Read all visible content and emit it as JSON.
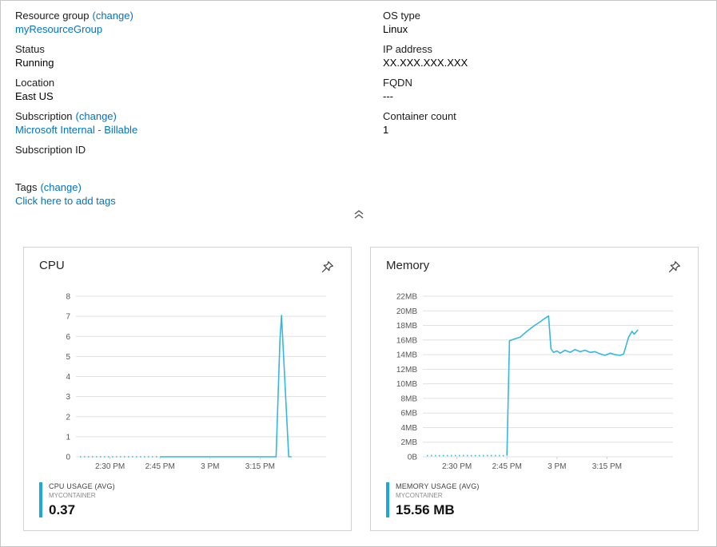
{
  "info": {
    "left": [
      {
        "label": "Resource group",
        "change": "(change)",
        "value": "myResourceGroup"
      },
      {
        "label": "Status",
        "value": "Running"
      },
      {
        "label": "Location",
        "value": "East US"
      },
      {
        "label": "Subscription",
        "change": "(change)",
        "value": "Microsoft Internal - Billable"
      },
      {
        "label": "Subscription ID",
        "value": ""
      },
      {
        "label": "Tags",
        "change": "(change)",
        "value": "Click here to add tags"
      }
    ],
    "right": [
      {
        "label": "OS type",
        "value": "Linux"
      },
      {
        "label": "IP address",
        "value": "XX.XXX.XXX.XXX"
      },
      {
        "label": "FQDN",
        "value": "---"
      },
      {
        "label": "Container count",
        "value": "1"
      }
    ]
  },
  "colors": {
    "link": "#0072c6",
    "chart_line": "#35b7df",
    "legend_bar": "#1ea7d6",
    "gridline": "#e0e0e0"
  },
  "chart_data": [
    {
      "type": "line",
      "title": "CPU",
      "line_color": "#35b7df",
      "xlim": [
        14.33,
        15.58
      ],
      "ylim": [
        0,
        8
      ],
      "x_ticks": [
        {
          "label": "2:30 PM",
          "value": 14.5
        },
        {
          "label": "2:45 PM",
          "value": 14.75
        },
        {
          "label": "3 PM",
          "value": 15.0
        },
        {
          "label": "3:15 PM",
          "value": 15.25
        }
      ],
      "y_ticks": [
        {
          "label": "0",
          "value": 0
        },
        {
          "label": "1",
          "value": 1
        },
        {
          "label": "2",
          "value": 2
        },
        {
          "label": "3",
          "value": 3
        },
        {
          "label": "4",
          "value": 4
        },
        {
          "label": "5",
          "value": 5
        },
        {
          "label": "6",
          "value": 6
        },
        {
          "label": "7",
          "value": 7
        },
        {
          "label": "8",
          "value": 8
        }
      ],
      "series": [
        {
          "name": "MYCONTAINER",
          "dotted_points": [
            [
              14.35,
              0
            ],
            [
              14.75,
              0
            ]
          ],
          "points": [
            [
              14.75,
              0
            ],
            [
              15.33,
              0
            ],
            [
              15.349,
              5.8
            ],
            [
              15.357,
              7.05
            ],
            [
              15.393,
              0
            ],
            [
              15.407,
              0
            ]
          ]
        }
      ],
      "legend": {
        "metric": "CPU USAGE (AVG)",
        "value": "0.37"
      }
    },
    {
      "type": "line",
      "title": "Memory",
      "line_color": "#35b7df",
      "xlim": [
        14.33,
        15.58
      ],
      "ylim": [
        0,
        22
      ],
      "x_ticks": [
        {
          "label": "2:30 PM",
          "value": 14.5
        },
        {
          "label": "2:45 PM",
          "value": 14.75
        },
        {
          "label": "3 PM",
          "value": 15.0
        },
        {
          "label": "3:15 PM",
          "value": 15.25
        }
      ],
      "y_ticks": [
        {
          "label": "0B",
          "value": 0
        },
        {
          "label": "2MB",
          "value": 2
        },
        {
          "label": "4MB",
          "value": 4
        },
        {
          "label": "6MB",
          "value": 6
        },
        {
          "label": "8MB",
          "value": 8
        },
        {
          "label": "10MB",
          "value": 10
        },
        {
          "label": "12MB",
          "value": 12
        },
        {
          "label": "14MB",
          "value": 14
        },
        {
          "label": "16MB",
          "value": 16
        },
        {
          "label": "18MB",
          "value": 18
        },
        {
          "label": "20MB",
          "value": 20
        },
        {
          "label": "22MB",
          "value": 22
        }
      ],
      "series": [
        {
          "name": "MYCONTAINER",
          "dotted_points": [
            [
              14.35,
              0.15
            ],
            [
              14.75,
              0.15
            ]
          ],
          "points": [
            [
              14.75,
              0.15
            ],
            [
              14.763,
              15.9
            ],
            [
              14.783,
              16.1
            ],
            [
              14.816,
              16.4
            ],
            [
              14.85,
              17.2
            ],
            [
              14.883,
              17.9
            ],
            [
              14.916,
              18.5
            ],
            [
              14.941,
              19.0
            ],
            [
              14.958,
              19.3
            ],
            [
              14.97,
              14.8
            ],
            [
              14.983,
              14.3
            ],
            [
              15.0,
              14.5
            ],
            [
              15.016,
              14.2
            ],
            [
              15.04,
              14.6
            ],
            [
              15.066,
              14.3
            ],
            [
              15.09,
              14.7
            ],
            [
              15.116,
              14.4
            ],
            [
              15.14,
              14.6
            ],
            [
              15.166,
              14.3
            ],
            [
              15.19,
              14.4
            ],
            [
              15.216,
              14.1
            ],
            [
              15.24,
              13.9
            ],
            [
              15.266,
              14.2
            ],
            [
              15.29,
              14.0
            ],
            [
              15.316,
              13.9
            ],
            [
              15.333,
              14.1
            ],
            [
              15.358,
              16.4
            ],
            [
              15.375,
              17.2
            ],
            [
              15.386,
              16.8
            ],
            [
              15.405,
              17.4
            ]
          ]
        }
      ],
      "legend": {
        "metric": "MEMORY USAGE (AVG)",
        "value": "15.56 MB"
      }
    }
  ]
}
